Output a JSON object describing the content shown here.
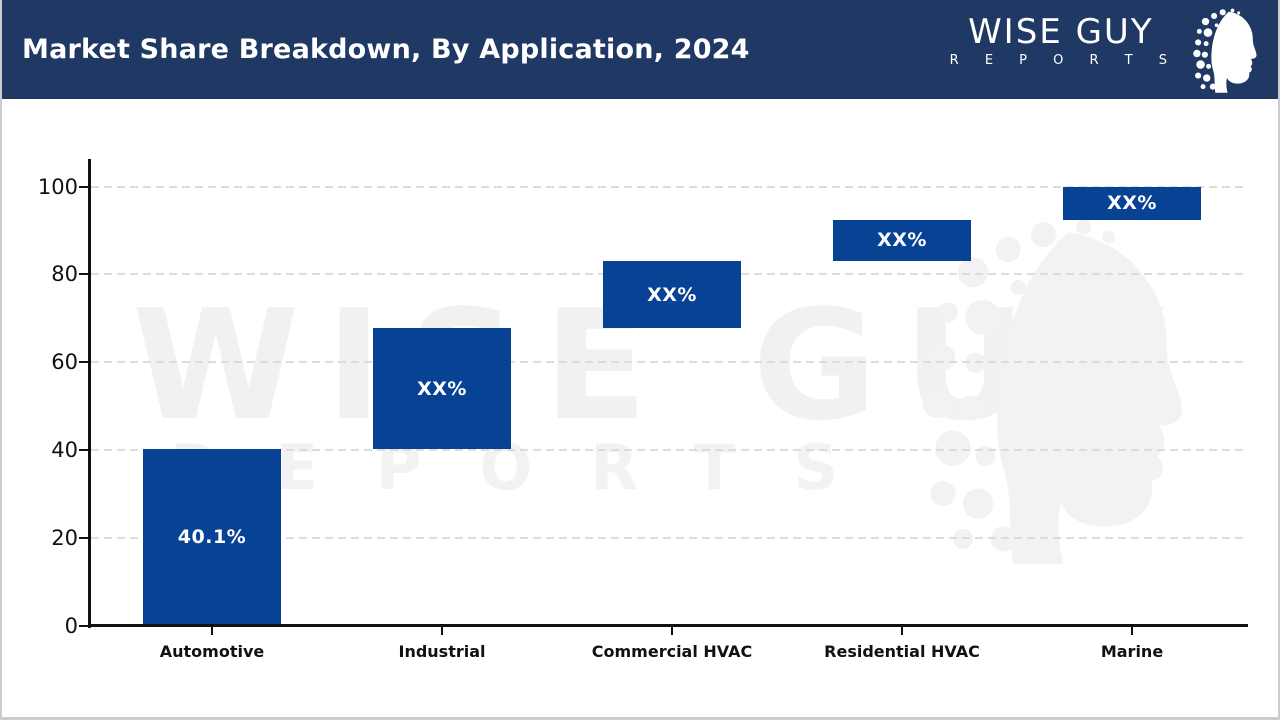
{
  "header": {
    "title": "Market Share Breakdown, By Application, 2024",
    "logo": {
      "name_line": "WISE GUY",
      "reports_line": "R E P O R T S"
    }
  },
  "watermark": {
    "name_line": "WISE GUY",
    "reports_line": "REPORTS"
  },
  "chart_data": {
    "type": "bar",
    "subtype": "waterfall",
    "title": "Market Share Breakdown, By Application, 2024",
    "categories": [
      "Automotive",
      "Industrial",
      "Commercial HVAC",
      "Residential HVAC",
      "Marine"
    ],
    "segments": [
      {
        "category": "Automotive",
        "start": 0,
        "end": 40.1,
        "label": "40.1%"
      },
      {
        "category": "Industrial",
        "start": 40.1,
        "end": 67.7,
        "label": "XX%"
      },
      {
        "category": "Commercial HVAC",
        "start": 67.7,
        "end": 83.0,
        "label": "XX%"
      },
      {
        "category": "Residential HVAC",
        "start": 83.0,
        "end": 92.4,
        "label": "XX%"
      },
      {
        "category": "Marine",
        "start": 92.4,
        "end": 100.0,
        "label": "XX%"
      }
    ],
    "yticks": [
      0,
      20,
      40,
      60,
      80,
      100
    ],
    "ylim": [
      0,
      106
    ],
    "xlabel": "",
    "ylabel": "",
    "grid": "horizontal-dashed",
    "legend": "none",
    "bar_color": "#084294",
    "bar_label_color": "#ffffff",
    "axis_color": "#111111"
  },
  "colors": {
    "header_bg": "#1f3864",
    "watermark": "#f1f1f1",
    "page_border": "#cccccc"
  }
}
